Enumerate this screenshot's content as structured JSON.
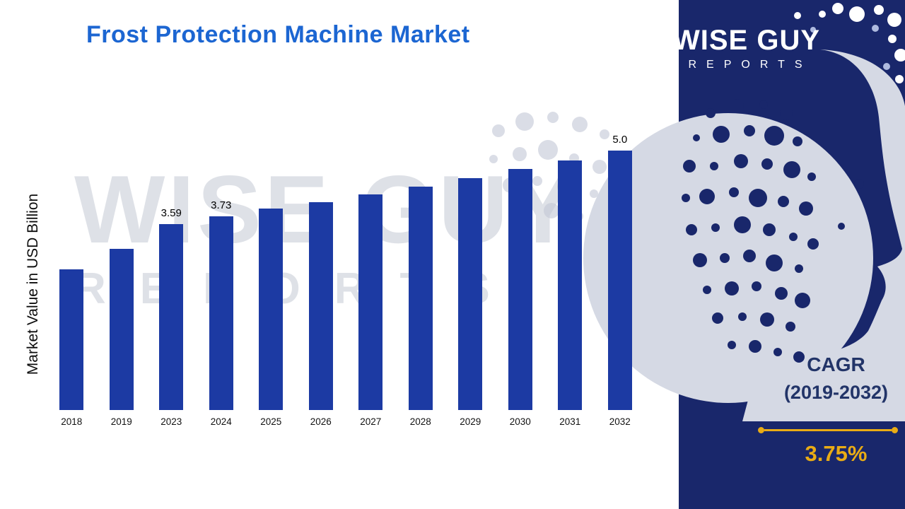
{
  "title": "Frost Protection Machine Market",
  "watermark": {
    "line1": "WISE GUY",
    "line2": "REPORTS"
  },
  "logo": {
    "line1": "WISE GUY",
    "line2": "REPORTS"
  },
  "chart_data": {
    "type": "bar",
    "title": "Frost Protection Machine Market",
    "xlabel": "",
    "ylabel": "Market Value in USD Billion",
    "categories": [
      "2018",
      "2019",
      "2023",
      "2024",
      "2025",
      "2026",
      "2027",
      "2028",
      "2029",
      "2030",
      "2031",
      "2032"
    ],
    "values": [
      2.71,
      3.1,
      3.59,
      3.73,
      3.88,
      4.0,
      4.15,
      4.31,
      4.47,
      4.65,
      4.81,
      5.0
    ],
    "value_labels": {
      "2023": "3.59",
      "2024": "3.73",
      "2032": "5.0"
    },
    "ylim": [
      0,
      5.5
    ],
    "grid": false,
    "legend": false,
    "bar_color": "#1c3aa3"
  },
  "side_panel": {
    "cagr_label": "CAGR",
    "cagr_period": "(2019-2032)",
    "cagr_value": "3.75%",
    "panel_color": "#19276b",
    "accent_gold": "#e9ac15",
    "circle_color": "#d5d9e4"
  }
}
